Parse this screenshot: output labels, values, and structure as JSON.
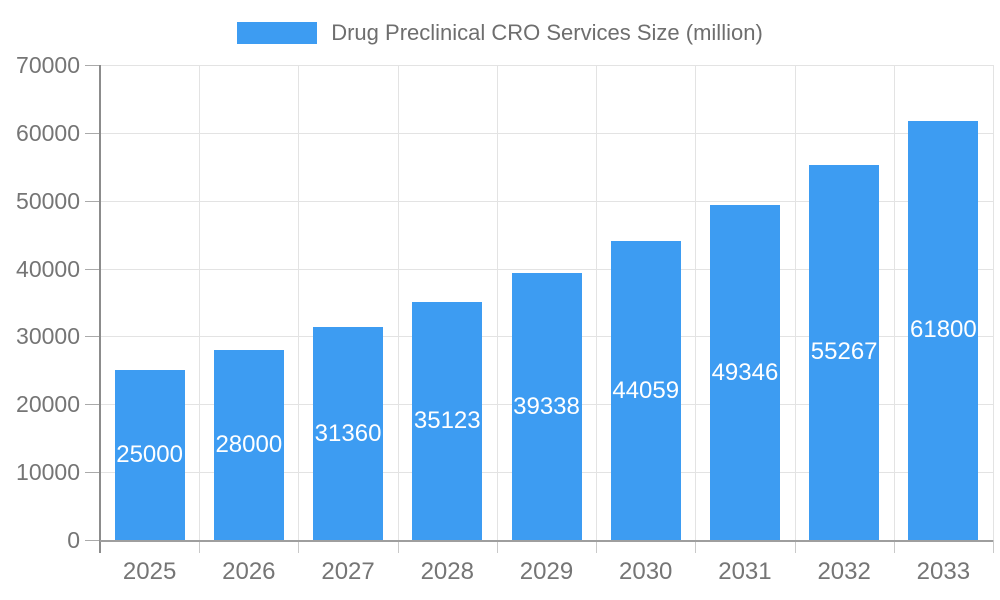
{
  "legend": {
    "label": "Drug Preclinical CRO Services Size (million)"
  },
  "chart_data": {
    "type": "bar",
    "title": "Drug Preclinical CRO Services Size (million)",
    "categories": [
      "2025",
      "2026",
      "2027",
      "2028",
      "2029",
      "2030",
      "2031",
      "2032",
      "2033"
    ],
    "values": [
      25000,
      28000,
      31360,
      35123,
      39338,
      44059,
      49346,
      55267,
      61800
    ],
    "xlabel": "",
    "ylabel": "",
    "ylim": [
      0,
      70000
    ],
    "yticks": [
      0,
      10000,
      20000,
      30000,
      40000,
      50000,
      60000,
      70000
    ],
    "grid": true,
    "legend_position": "top-center",
    "bar_labels_visible": true,
    "colors": {
      "bar": "#3d9cf2",
      "bar_label_text": "#ffffff",
      "axis_text": "#757575",
      "legend_text": "#6e6e6e",
      "gridline": "#e3e3e3",
      "y_axis_line": "#8c8c8c",
      "x_axis_line": "#9e9e9e"
    }
  }
}
